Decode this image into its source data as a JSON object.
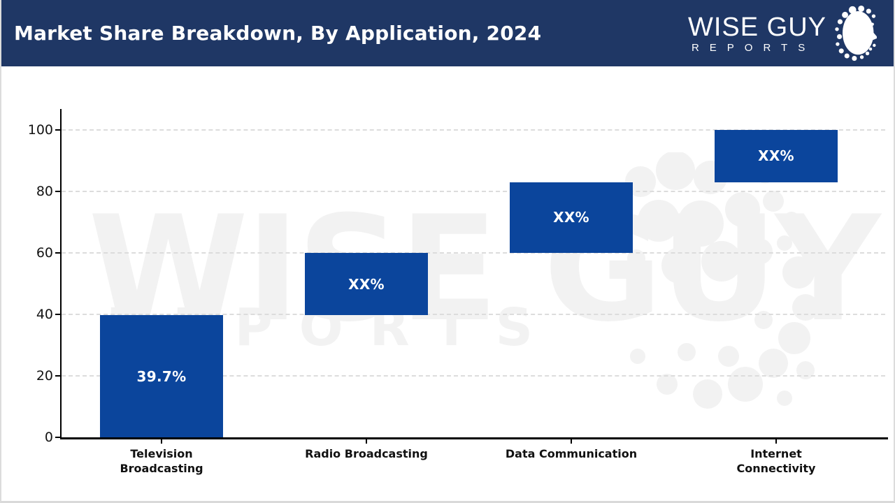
{
  "header": {
    "title": "Market Share Breakdown, By Application, 2024",
    "logo": {
      "name": "WISE GUY",
      "tagline": "REPORTS"
    }
  },
  "watermark": {
    "line1": "WISE GUY",
    "line2": "REPORTS"
  },
  "colors": {
    "header_bg": "#1f3765",
    "bar": "#0b459c",
    "watermark": "#f2f2f2",
    "gridline": "#dcdcdc"
  },
  "chart_data": {
    "type": "bar",
    "variant": "waterfall",
    "title": "Market Share Breakdown, By Application, 2024",
    "categories": [
      "Television\nBroadcasting",
      "Radio Broadcasting",
      "Data Communication",
      "Internet\nConnectivity"
    ],
    "series": [
      {
        "name": "Market share (%)",
        "segments": [
          {
            "from": 0,
            "to": 39.7,
            "label": "39.7%"
          },
          {
            "from": 39.7,
            "to": 60,
            "label": "XX%"
          },
          {
            "from": 60,
            "to": 83,
            "label": "XX%"
          },
          {
            "from": 83,
            "to": 100,
            "label": "XX%"
          }
        ]
      }
    ],
    "ylim": [
      0,
      100
    ],
    "yticks": [
      0,
      20,
      40,
      60,
      80,
      100
    ],
    "grid": "horizontal-dashed",
    "legend": "none",
    "bar_color": "#0b459c",
    "bar_label_color": "#ffffff"
  }
}
